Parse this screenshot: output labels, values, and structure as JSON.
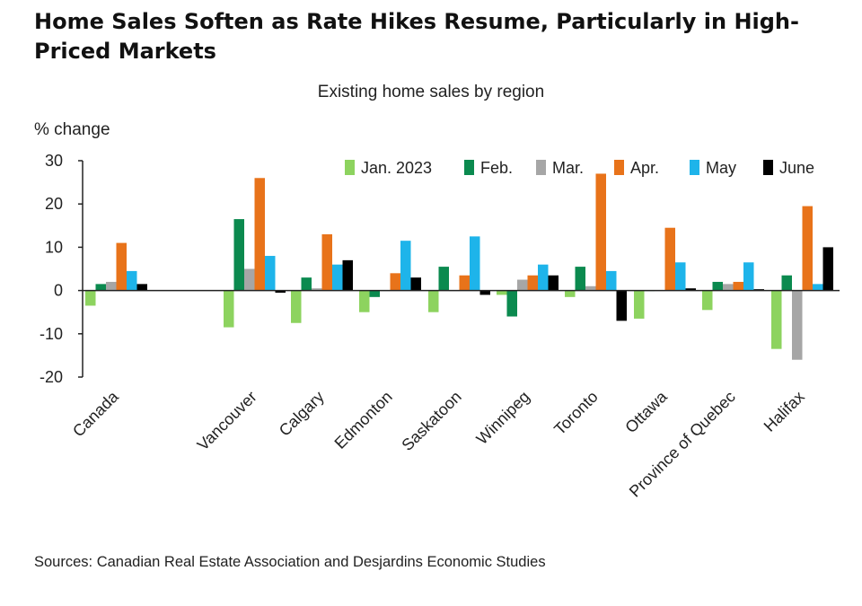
{
  "header": {
    "title": "Home Sales Soften as Rate Hikes Resume, Particularly in High-Priced Markets"
  },
  "chart_data": {
    "type": "bar",
    "title": "Existing home sales by region",
    "ylabel": "% change",
    "xlabel": "",
    "ylim": [
      -20,
      30
    ],
    "yticks": [
      30,
      20,
      10,
      0,
      -10,
      -20
    ],
    "legend_position": "top-right",
    "grid": false,
    "categories": [
      "Canada",
      "Vancouver",
      "Calgary",
      "Edmonton",
      "Saskatoon",
      "Winnipeg",
      "Toronto",
      "Ottawa",
      "Province of Quebec",
      "Halifax"
    ],
    "series": [
      {
        "name": "Jan. 2023",
        "color": "#8dd35f",
        "values": [
          -3.5,
          -8.5,
          -7.5,
          -5,
          -5,
          -1,
          -1.5,
          -6.5,
          -4.5,
          -13.5
        ]
      },
      {
        "name": "Feb.",
        "color": "#0b8a4f",
        "values": [
          1.5,
          16.5,
          3,
          -1.5,
          5.5,
          -6,
          5.5,
          0,
          2,
          3.5
        ]
      },
      {
        "name": "Mar.",
        "color": "#a6a6a6",
        "values": [
          2,
          5,
          0.5,
          0,
          0,
          2.5,
          1,
          0,
          1.5,
          -16
        ]
      },
      {
        "name": "Apr.",
        "color": "#e8731a",
        "values": [
          11,
          26,
          13,
          4,
          3.5,
          3.5,
          27,
          14.5,
          2,
          19.5
        ]
      },
      {
        "name": "May",
        "color": "#1eb4ea",
        "values": [
          4.5,
          8,
          6,
          11.5,
          12.5,
          6,
          4.5,
          6.5,
          6.5,
          1.5
        ]
      },
      {
        "name": "June",
        "color": "#000000",
        "values": [
          1.5,
          -0.5,
          7,
          3,
          -1,
          3.5,
          -7,
          0.5,
          0.3,
          10
        ]
      }
    ]
  },
  "footer": {
    "source": "Sources: Canadian Real Estate Association and Desjardins Economic Studies"
  }
}
